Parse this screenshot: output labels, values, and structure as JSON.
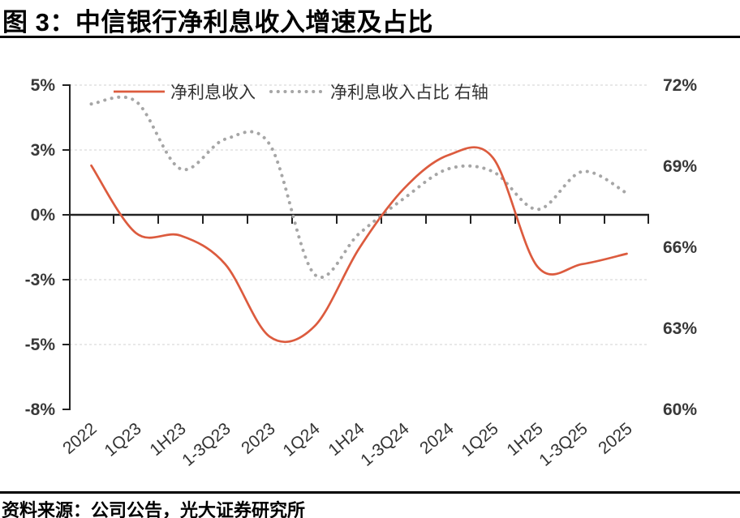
{
  "figure": {
    "title": "图 3：中信银行净利息收入增速及占比",
    "source": "资料来源：公司公告，光大证券研究所"
  },
  "chart_data": {
    "type": "line",
    "title": "中信银行净利息收入增速及占比",
    "categories": [
      "2022",
      "1Q23",
      "1H23",
      "1-3Q23",
      "2023",
      "1Q24",
      "1H24",
      "1-3Q24",
      "2024",
      "1Q25",
      "1H25",
      "1-3Q25",
      "2025"
    ],
    "series": [
      {
        "name": "净利息收入",
        "axis": "left",
        "unit": "%",
        "line_style": "solid",
        "color": "#DC5B3E",
        "values": [
          1.9,
          -0.7,
          -0.8,
          -1.9,
          -4.7,
          -4.3,
          -1.3,
          1.0,
          2.3,
          2.2,
          -2.0,
          -1.9,
          -1.5
        ]
      },
      {
        "name": "净利息收入占比 右轴",
        "axis": "right",
        "unit": "%",
        "line_style": "dotted",
        "color": "#A6A6A6",
        "values": [
          71.3,
          71.4,
          68.9,
          70.0,
          69.8,
          65.0,
          66.5,
          67.8,
          68.9,
          68.8,
          67.4,
          68.8,
          68.0
        ]
      }
    ],
    "left_axis": {
      "tick_labels": [
        "5%",
        "3%",
        "0%",
        "-3%",
        "-5%",
        "-8%"
      ],
      "tick_values": [
        5,
        2.5,
        0,
        -2.5,
        -5,
        -7.5
      ],
      "range": [
        -7.5,
        5
      ]
    },
    "right_axis": {
      "tick_labels": [
        "72%",
        "69%",
        "66%",
        "63%",
        "60%"
      ],
      "tick_values": [
        72,
        69,
        66,
        63,
        60
      ],
      "range": [
        60,
        72
      ]
    },
    "legend_position": "top-inside",
    "grid": "horizontal dashed"
  }
}
